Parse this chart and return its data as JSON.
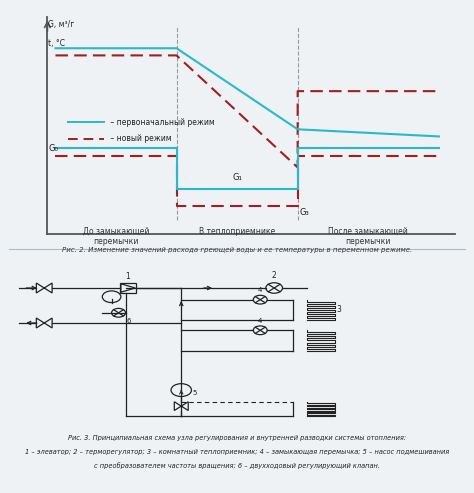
{
  "fig_width": 4.74,
  "fig_height": 4.93,
  "dpi": 100,
  "bg_color": "#eef2f5",
  "panel1": {
    "ylabel_top": "G, м³/г",
    "ylabel_bot": "t, °C",
    "cyan_color": "#29b8ce",
    "red_color": "#9e2020",
    "divider_color": "#888888",
    "axis_color": "#555555",
    "label_g0": "G₀",
    "label_g1": "G₁",
    "label_g3": "G₃",
    "zone1_label": "До замыкающей\nперемычки",
    "zone2_label": "В теплоприемнике",
    "zone3_label": "После замыкающей\nперемычки",
    "legend1": " – первоначальный режим",
    "legend2": " – новый режим",
    "caption": "Рис. 2. Изменение значений расхода греющей воды и ее температуры в переменном режиме."
  },
  "panel2": {
    "bg_color": "#dce8f0",
    "sc_color": "#222222",
    "caption1": "Рис. 3. Принципиальная схема узла регулирования и внутренней разводки системы отопления:",
    "caption2": "1 – элеватор; 2 – терморегулятор; 3 – комнатный теплоприемник; 4 – замыкающая перемычка; 5 – насос подмешивания",
    "caption3": "с преобразователем частоты вращения; 6 – двухходовый регулирующий клапан."
  }
}
